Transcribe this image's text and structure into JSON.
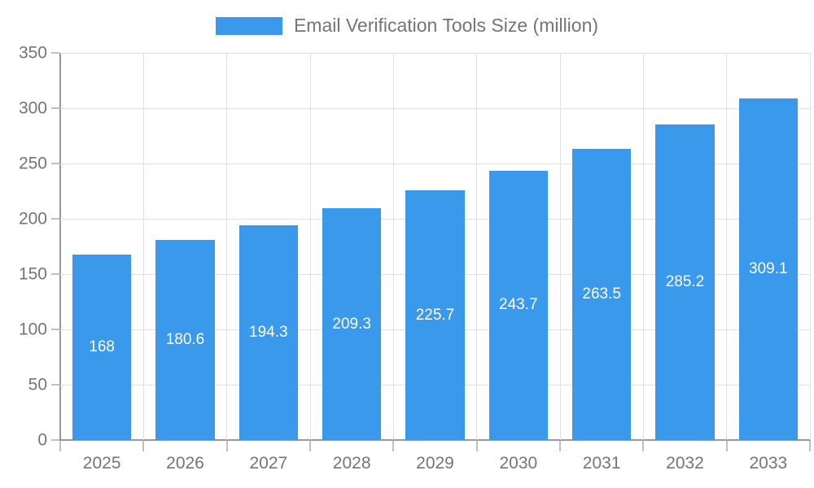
{
  "chart_data": {
    "type": "bar",
    "title": "Email Verification Tools Size (million)",
    "categories": [
      "2025",
      "2026",
      "2027",
      "2028",
      "2029",
      "2030",
      "2031",
      "2032",
      "2033"
    ],
    "values": [
      168,
      180.6,
      194.3,
      209.3,
      225.7,
      243.7,
      263.5,
      285.2,
      309.1
    ],
    "xlabel": "",
    "ylabel": "",
    "ylim": [
      0,
      350
    ],
    "y_ticks": [
      0,
      50,
      100,
      150,
      200,
      250,
      300,
      350
    ],
    "grid": true,
    "legend_position": "top",
    "bar_width_fraction": 0.71,
    "colors": {
      "bar": "#3b99ec",
      "bar_label": "#ffffff",
      "grid": "#e0e0e0",
      "axis": "#999999",
      "tick": "#c0c0c0",
      "text": "#757575",
      "title": "#757575"
    }
  }
}
